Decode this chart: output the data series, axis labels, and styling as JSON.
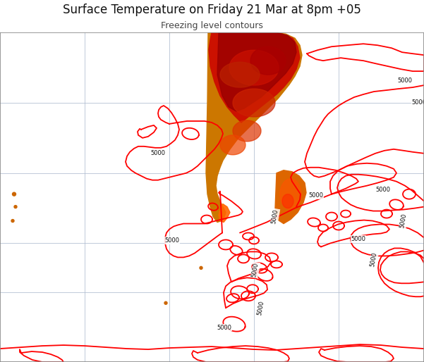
{
  "title": "Surface Temperature on Friday 21 Mar at 8pm +05",
  "subtitle": "Freezing level contours",
  "title_fontsize": 12,
  "subtitle_fontsize": 9,
  "background_color": "#ffffff",
  "map_background": "#c8d0e8",
  "contour_color": "#ff0000",
  "grid_color": "#b0bcd0",
  "figsize": [
    6.01,
    5.14
  ],
  "dpi": 100
}
